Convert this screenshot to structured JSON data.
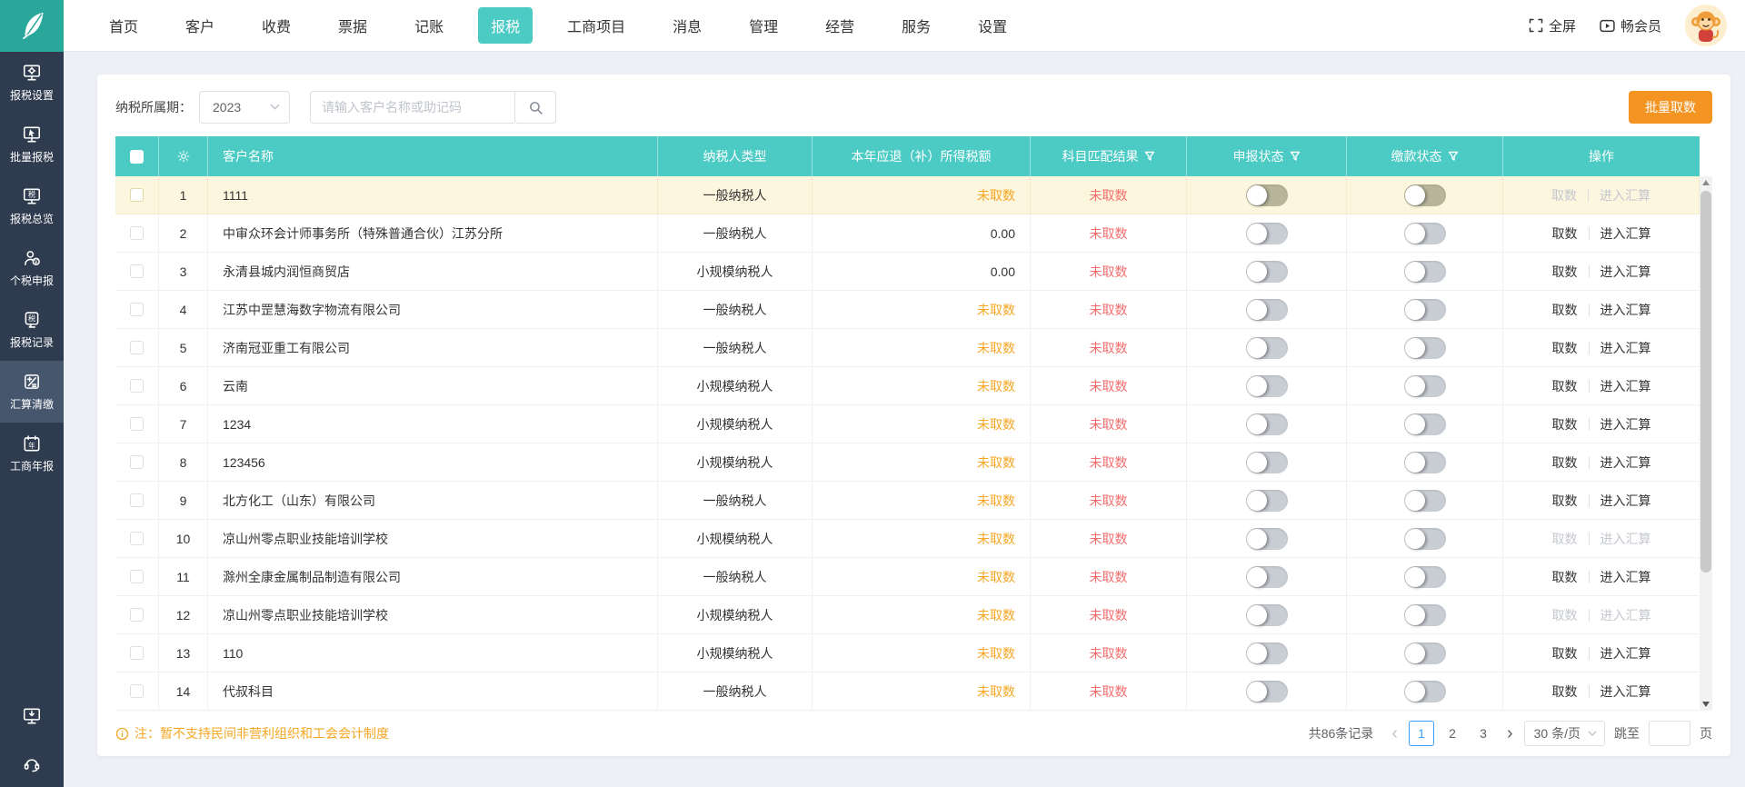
{
  "colors": {
    "accent_teal": "#4ccbc4",
    "logo_teal": "#2aa79b",
    "sidebar_bg": "#2f3b4f",
    "warn_orange": "#f5a623",
    "error_red": "#f56c6c",
    "button_orange": "#f39423",
    "page_active_blue": "#409eff",
    "row_selected_bg": "#fdf6de"
  },
  "topnav": {
    "menu": [
      {
        "label": "首页",
        "active": false
      },
      {
        "label": "客户",
        "active": false
      },
      {
        "label": "收费",
        "active": false
      },
      {
        "label": "票据",
        "active": false
      },
      {
        "label": "记账",
        "active": false
      },
      {
        "label": "报税",
        "active": true
      },
      {
        "label": "工商项目",
        "active": false
      },
      {
        "label": "消息",
        "active": false
      },
      {
        "label": "管理",
        "active": false
      },
      {
        "label": "经营",
        "active": false
      },
      {
        "label": "服务",
        "active": false
      },
      {
        "label": "设置",
        "active": false
      }
    ],
    "fullscreen_label": "全屏",
    "member_label": "畅会员"
  },
  "sidebar": {
    "items": [
      {
        "label": "报税设置",
        "icon": "monitor-gear-icon",
        "selected": false
      },
      {
        "label": "批量报税",
        "icon": "monitor-cursor-icon",
        "selected": false
      },
      {
        "label": "报税总览",
        "icon": "monitor-tax-icon",
        "selected": false
      },
      {
        "label": "个税申报",
        "icon": "person-tax-icon",
        "selected": false
      },
      {
        "label": "报税记录",
        "icon": "tax-record-icon",
        "selected": false
      },
      {
        "label": "汇算清缴",
        "icon": "calculator-icon",
        "selected": true
      },
      {
        "label": "工商年报",
        "icon": "calendar-year-icon",
        "selected": false
      }
    ],
    "bottom_icons": [
      "monitor-download-icon",
      "headset-icon"
    ]
  },
  "filters": {
    "period_label": "纳税所属期：",
    "period_value": "2023",
    "search_placeholder": "请输入客户名称或助记码",
    "batch_button": "批量取数"
  },
  "table": {
    "headers": [
      {
        "icon": "checkbox"
      },
      {
        "icon": "gear-icon"
      },
      {
        "label": "客户名称",
        "align": "left"
      },
      {
        "label": "纳税人类型"
      },
      {
        "label": "本年应退（补）所得税额"
      },
      {
        "label": "科目匹配结果",
        "filter": true
      },
      {
        "label": "申报状态",
        "filter": true
      },
      {
        "label": "缴款状态",
        "filter": true
      },
      {
        "label": "操作"
      }
    ],
    "action_labels": {
      "fetch": "取数",
      "enter": "进入汇算"
    },
    "rows": [
      {
        "num": "1",
        "name": "1111",
        "type": "一般纳税人",
        "amount": "未取数",
        "amount_kind": "orange",
        "match": "未取数",
        "declare_on": false,
        "pay_on": false,
        "selected": true,
        "actions_disabled": true
      },
      {
        "num": "2",
        "name": "中审众环会计师事务所（特殊普通合伙）江苏分所",
        "type": "一般纳税人",
        "amount": "0.00",
        "amount_kind": "number",
        "match": "未取数",
        "declare_on": false,
        "pay_on": false,
        "selected": false,
        "actions_disabled": false
      },
      {
        "num": "3",
        "name": "永清县城内润恒商贸店",
        "type": "小规模纳税人",
        "amount": "0.00",
        "amount_kind": "number",
        "match": "未取数",
        "declare_on": false,
        "pay_on": false,
        "selected": false,
        "actions_disabled": false
      },
      {
        "num": "4",
        "name": "江苏中罡慧海数字物流有限公司",
        "type": "一般纳税人",
        "amount": "未取数",
        "amount_kind": "orange",
        "match": "未取数",
        "declare_on": false,
        "pay_on": false,
        "selected": false,
        "actions_disabled": false
      },
      {
        "num": "5",
        "name": "济南冠亚重工有限公司",
        "type": "一般纳税人",
        "amount": "未取数",
        "amount_kind": "orange",
        "match": "未取数",
        "declare_on": false,
        "pay_on": false,
        "selected": false,
        "actions_disabled": false
      },
      {
        "num": "6",
        "name": "云南",
        "type": "小规模纳税人",
        "amount": "未取数",
        "amount_kind": "orange",
        "match": "未取数",
        "declare_on": false,
        "pay_on": false,
        "selected": false,
        "actions_disabled": false
      },
      {
        "num": "7",
        "name": "1234",
        "type": "小规模纳税人",
        "amount": "未取数",
        "amount_kind": "orange",
        "match": "未取数",
        "declare_on": false,
        "pay_on": false,
        "selected": false,
        "actions_disabled": false
      },
      {
        "num": "8",
        "name": "123456",
        "type": "小规模纳税人",
        "amount": "未取数",
        "amount_kind": "orange",
        "match": "未取数",
        "declare_on": false,
        "pay_on": false,
        "selected": false,
        "actions_disabled": false
      },
      {
        "num": "9",
        "name": "北方化工（山东）有限公司",
        "type": "一般纳税人",
        "amount": "未取数",
        "amount_kind": "orange",
        "match": "未取数",
        "declare_on": false,
        "pay_on": false,
        "selected": false,
        "actions_disabled": false
      },
      {
        "num": "10",
        "name": "凉山州零点职业技能培训学校",
        "type": "小规模纳税人",
        "amount": "未取数",
        "amount_kind": "orange",
        "match": "未取数",
        "declare_on": false,
        "pay_on": false,
        "selected": false,
        "actions_disabled": true
      },
      {
        "num": "11",
        "name": "滁州全康金属制品制造有限公司",
        "type": "一般纳税人",
        "amount": "未取数",
        "amount_kind": "orange",
        "match": "未取数",
        "declare_on": false,
        "pay_on": false,
        "selected": false,
        "actions_disabled": false
      },
      {
        "num": "12",
        "name": "凉山州零点职业技能培训学校",
        "type": "小规模纳税人",
        "amount": "未取数",
        "amount_kind": "orange",
        "match": "未取数",
        "declare_on": false,
        "pay_on": false,
        "selected": false,
        "actions_disabled": true
      },
      {
        "num": "13",
        "name": "110",
        "type": "小规模纳税人",
        "amount": "未取数",
        "amount_kind": "orange",
        "match": "未取数",
        "declare_on": false,
        "pay_on": false,
        "selected": false,
        "actions_disabled": false
      },
      {
        "num": "14",
        "name": "代叔科目",
        "type": "一般纳税人",
        "amount": "未取数",
        "amount_kind": "orange",
        "match": "未取数",
        "declare_on": false,
        "pay_on": false,
        "selected": false,
        "actions_disabled": false
      }
    ]
  },
  "footer": {
    "note": "注：暂不支持民间非营利组织和工会会计制度",
    "total": "共86条记录",
    "pages": [
      "1",
      "2",
      "3"
    ],
    "current_page": "1",
    "page_size": "30 条/页",
    "jump_prefix": "跳至",
    "jump_suffix": "页"
  }
}
